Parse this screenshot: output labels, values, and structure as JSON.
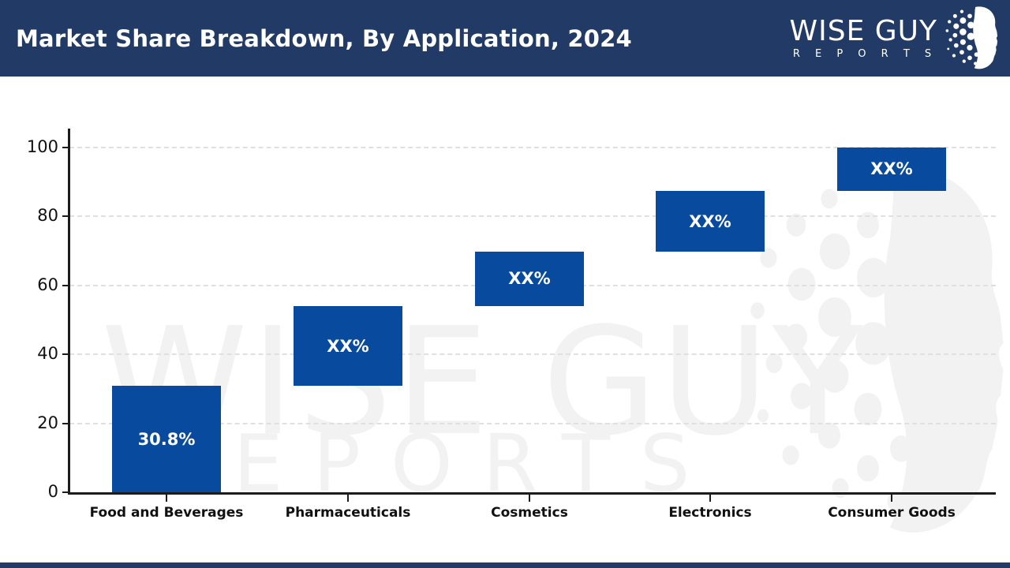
{
  "header": {
    "title": "Market Share Breakdown, By Application, 2024",
    "logo": {
      "name": "WISE GUY",
      "sub": "R E P O R T S"
    }
  },
  "watermark": {
    "line1": "WISE GUY",
    "line2": "REPORTS"
  },
  "colors": {
    "header_bg": "#213a66",
    "footer_bg": "#213a66",
    "bar": "#084b9e",
    "bar_label_text": "#ffffff",
    "grid": "#e0e0e0",
    "axis": "#1c1c1c",
    "watermark": "#f2f2f2"
  },
  "chart_data": {
    "type": "bar",
    "subtype": "waterfall",
    "title": "Market Share Breakdown, By Application, 2024",
    "xlabel": "",
    "ylabel": "",
    "categories": [
      "Food and Beverages",
      "Pharmaceuticals",
      "Cosmetics",
      "Electronics",
      "Consumer Goods"
    ],
    "segments": [
      {
        "category": "Food and Beverages",
        "start": 0,
        "end": 30.8,
        "label": "30.8%"
      },
      {
        "category": "Pharmaceuticals",
        "start": 30.8,
        "end": 54.0,
        "label": "XX%"
      },
      {
        "category": "Cosmetics",
        "start": 54.0,
        "end": 69.7,
        "label": "XX%"
      },
      {
        "category": "Electronics",
        "start": 69.7,
        "end": 87.3,
        "label": "XX%"
      },
      {
        "category": "Consumer Goods",
        "start": 87.3,
        "end": 100,
        "label": "XX%"
      }
    ],
    "yticks": [
      0,
      20,
      40,
      60,
      80,
      100
    ],
    "ylim": [
      0,
      105
    ],
    "grid": "horizontal-dashed",
    "legend": "none"
  }
}
